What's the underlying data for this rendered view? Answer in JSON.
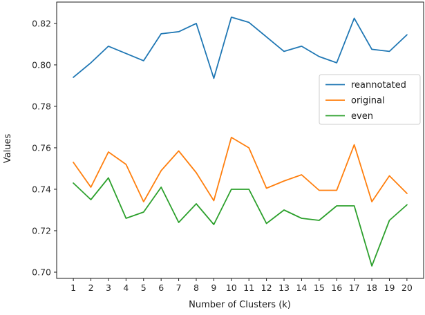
{
  "figure": {
    "background": "#ffffff"
  },
  "chart_data": {
    "type": "line",
    "title": "",
    "xlabel": "Number of Clusters (k)",
    "ylabel": "Values",
    "x": [
      1,
      2,
      3,
      4,
      5,
      6,
      7,
      8,
      9,
      10,
      11,
      12,
      13,
      14,
      15,
      16,
      17,
      18,
      19,
      20
    ],
    "x_tick_labels": [
      "1",
      "2",
      "3",
      "4",
      "5",
      "6",
      "7",
      "8",
      "9",
      "10",
      "11",
      "12",
      "13",
      "14",
      "15",
      "16",
      "17",
      "18",
      "19",
      "20"
    ],
    "y_ticks": [
      0.7,
      0.72,
      0.74,
      0.76,
      0.78,
      0.8,
      0.82
    ],
    "y_tick_labels": [
      "0.70",
      "0.72",
      "0.74",
      "0.76",
      "0.78",
      "0.80",
      "0.82"
    ],
    "xlim": [
      0.05,
      20.95
    ],
    "ylim": [
      0.697,
      0.8303
    ],
    "grid": false,
    "legend": {
      "position": "center-right-inside",
      "border_color": "#cccccc",
      "background": "#ffffff"
    },
    "series": [
      {
        "name": "reannotated",
        "color": "#1f77b4",
        "values": [
          0.794,
          0.801,
          0.809,
          0.8055,
          0.802,
          0.815,
          0.816,
          0.82,
          0.7935,
          0.823,
          0.8205,
          0.8135,
          0.8065,
          0.809,
          0.804,
          0.801,
          0.8225,
          0.8075,
          0.8065,
          0.8145
        ]
      },
      {
        "name": "original",
        "color": "#ff7f0e",
        "values": [
          0.753,
          0.741,
          0.758,
          0.752,
          0.734,
          0.749,
          0.7585,
          0.748,
          0.7345,
          0.765,
          0.76,
          0.7405,
          0.744,
          0.747,
          0.7395,
          0.7395,
          0.7615,
          0.734,
          0.7465,
          0.738
        ]
      },
      {
        "name": "even",
        "color": "#2ca02c",
        "values": [
          0.743,
          0.735,
          0.7455,
          0.726,
          0.729,
          0.741,
          0.724,
          0.733,
          0.723,
          0.74,
          0.74,
          0.7235,
          0.73,
          0.726,
          0.725,
          0.732,
          0.732,
          0.703,
          0.725,
          0.7325
        ]
      }
    ],
    "axis_color": "#1a1a1a",
    "tick_label_color": "#262626"
  }
}
